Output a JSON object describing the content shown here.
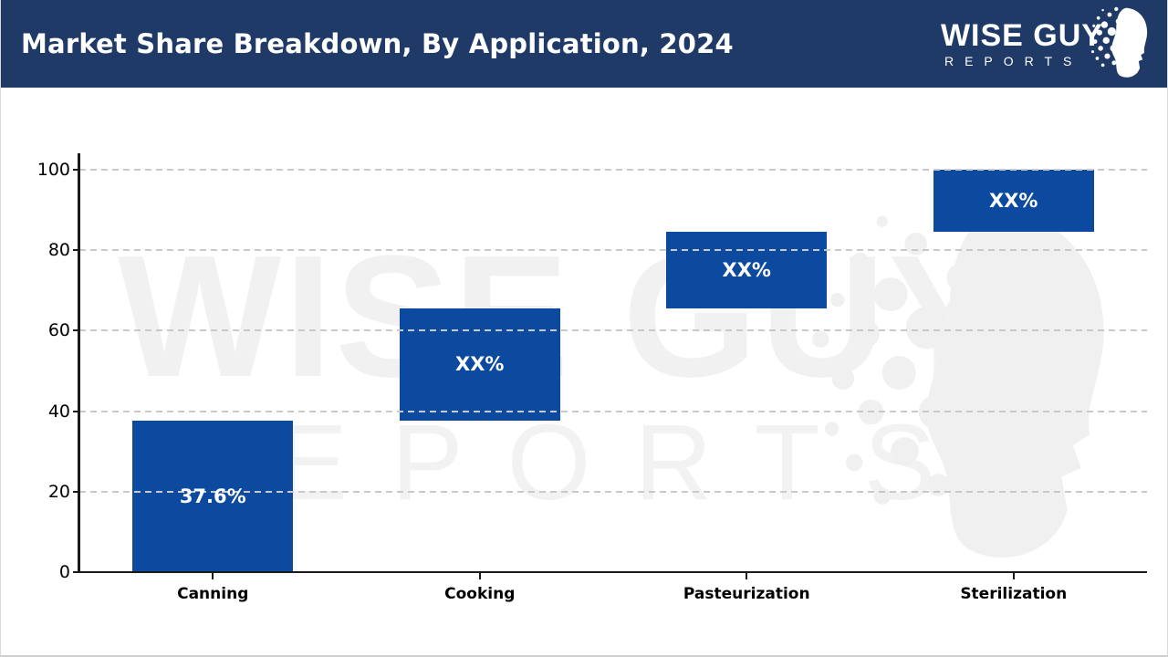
{
  "header": {
    "title": "Market Share Breakdown, By Application, 2024",
    "bg_color": "#1f3a67",
    "logo": {
      "wordmark": "WISE GUY",
      "sub": "REPORTS"
    }
  },
  "watermark": {
    "line1": "WISE GUY",
    "line2": "REPORTS"
  },
  "chart_data": {
    "type": "bar",
    "subtype": "waterfall",
    "title": "Market Share Breakdown, By Application, 2024",
    "xlabel": "",
    "ylabel": "",
    "categories": [
      "Canning",
      "Cooking",
      "Pasteurization",
      "Sterilization"
    ],
    "series": [
      {
        "name": "Market Share",
        "segments": [
          {
            "category": "Canning",
            "start": 0,
            "end": 37.6,
            "label": "37.6%"
          },
          {
            "category": "Cooking",
            "start": 37.6,
            "end": 65.6,
            "label": "XX%"
          },
          {
            "category": "Pasteurization",
            "start": 65.6,
            "end": 84.5,
            "label": "XX%"
          },
          {
            "category": "Sterilization",
            "start": 84.5,
            "end": 100,
            "label": "XX%"
          }
        ]
      }
    ],
    "ylim": [
      0,
      100
    ],
    "yticks": [
      0,
      20,
      40,
      60,
      80,
      100
    ],
    "grid": "horizontal-dashed, drawn above bars",
    "legend": "none",
    "bar_color": "#0c4aa0",
    "bar_label_color": "#ffffff"
  }
}
